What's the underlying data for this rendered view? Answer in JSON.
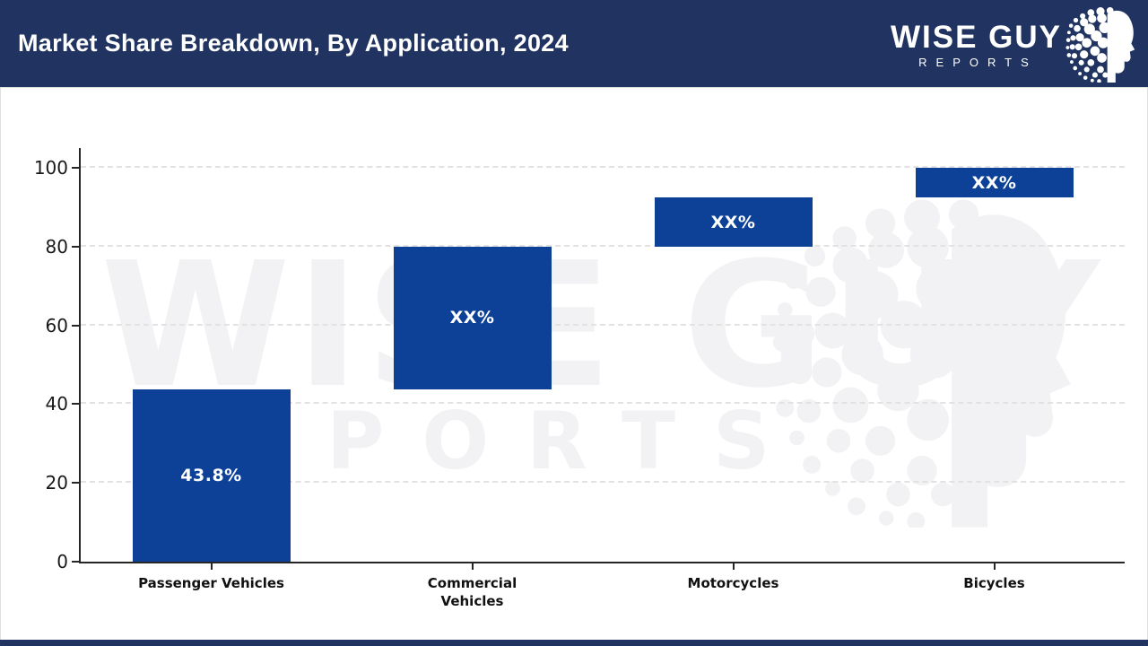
{
  "header": {
    "title": "Market Share Breakdown, By Application, 2024",
    "background": "#213461",
    "logo": {
      "line1": "WISE GUY",
      "line2": "REPORTS"
    }
  },
  "watermark": {
    "line1": "WISE GUY",
    "line2": "REPORTS"
  },
  "chart_data": {
    "type": "bar",
    "subtype": "waterfall",
    "title": "",
    "xlabel": "",
    "ylabel": "",
    "categories": [
      "Passenger Vehicles",
      "Commercial\nVehicles",
      "Motorcycles",
      "Bicycles"
    ],
    "segments": [
      {
        "category": "Passenger Vehicles",
        "start": 0,
        "end": 43.8,
        "label": "43.8%"
      },
      {
        "category": "Commercial Vehicles",
        "start": 43.8,
        "end": 80.0,
        "label": "XX%"
      },
      {
        "category": "Motorcycles",
        "start": 80.0,
        "end": 92.4,
        "label": "XX%"
      },
      {
        "category": "Bicycles",
        "start": 92.4,
        "end": 100.0,
        "label": "XX%"
      }
    ],
    "yticks": [
      0,
      20,
      40,
      60,
      80,
      100
    ],
    "ylim": [
      0,
      105
    ],
    "grid": "horizontal-dashed",
    "legend": "none",
    "bar_color": "#0c4197",
    "bar_label_color": "#ffffff",
    "grid_color": "#e2e2e2",
    "axis_color": "#262626"
  },
  "footer": {
    "background": "#213461"
  }
}
